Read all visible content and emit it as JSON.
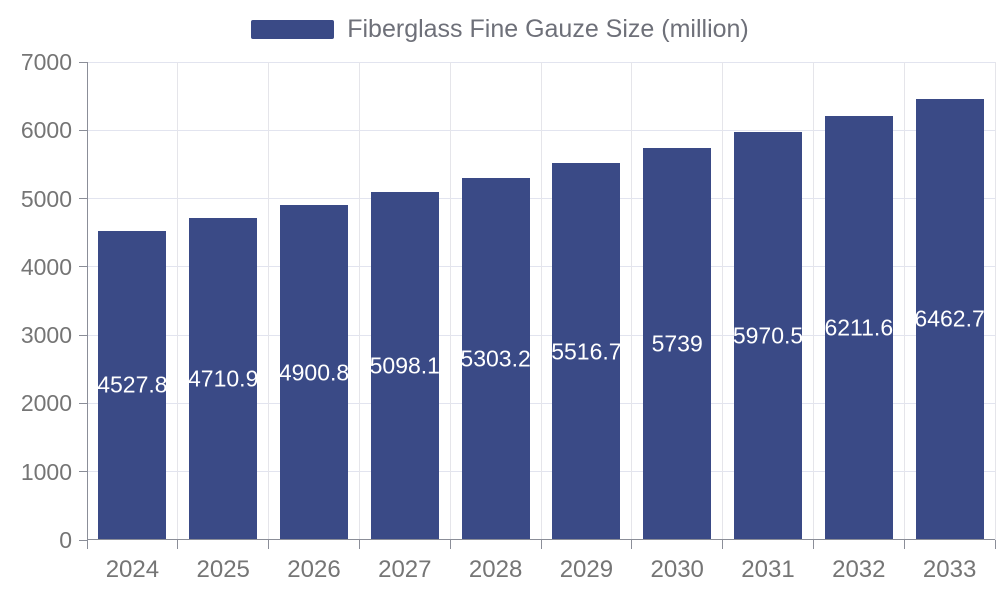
{
  "legend": {
    "label": "Fiberglass Fine Gauze Size (million)",
    "swatch_color": "#3a4a86"
  },
  "chart_data": {
    "type": "bar",
    "title": "Fiberglass Fine Gauze Size (million)",
    "categories": [
      "2024",
      "2025",
      "2026",
      "2027",
      "2028",
      "2029",
      "2030",
      "2031",
      "2032",
      "2033"
    ],
    "values": [
      4527.8,
      4710.9,
      4900.8,
      5098.1,
      5303.2,
      5516.7,
      5739,
      5970.5,
      6211.6,
      6462.7
    ],
    "data_labels": [
      "4527.8",
      "4710.9",
      "4900.8",
      "5098.1",
      "5303.2",
      "5516.7",
      "5739",
      "5970.5",
      "6211.6",
      "6462.7"
    ],
    "xlabel": "",
    "ylabel": "",
    "ylim": [
      0,
      7000
    ],
    "ytick_interval": 1000,
    "yticks": [
      "0",
      "1000",
      "2000",
      "3000",
      "4000",
      "5000",
      "6000",
      "7000"
    ],
    "bar_color": "#3a4a86",
    "data_label_color": "#ffffff",
    "axis_text_color": "#757575",
    "grid": true,
    "legend_position": "top-center",
    "data_label_position": "inside-center"
  }
}
